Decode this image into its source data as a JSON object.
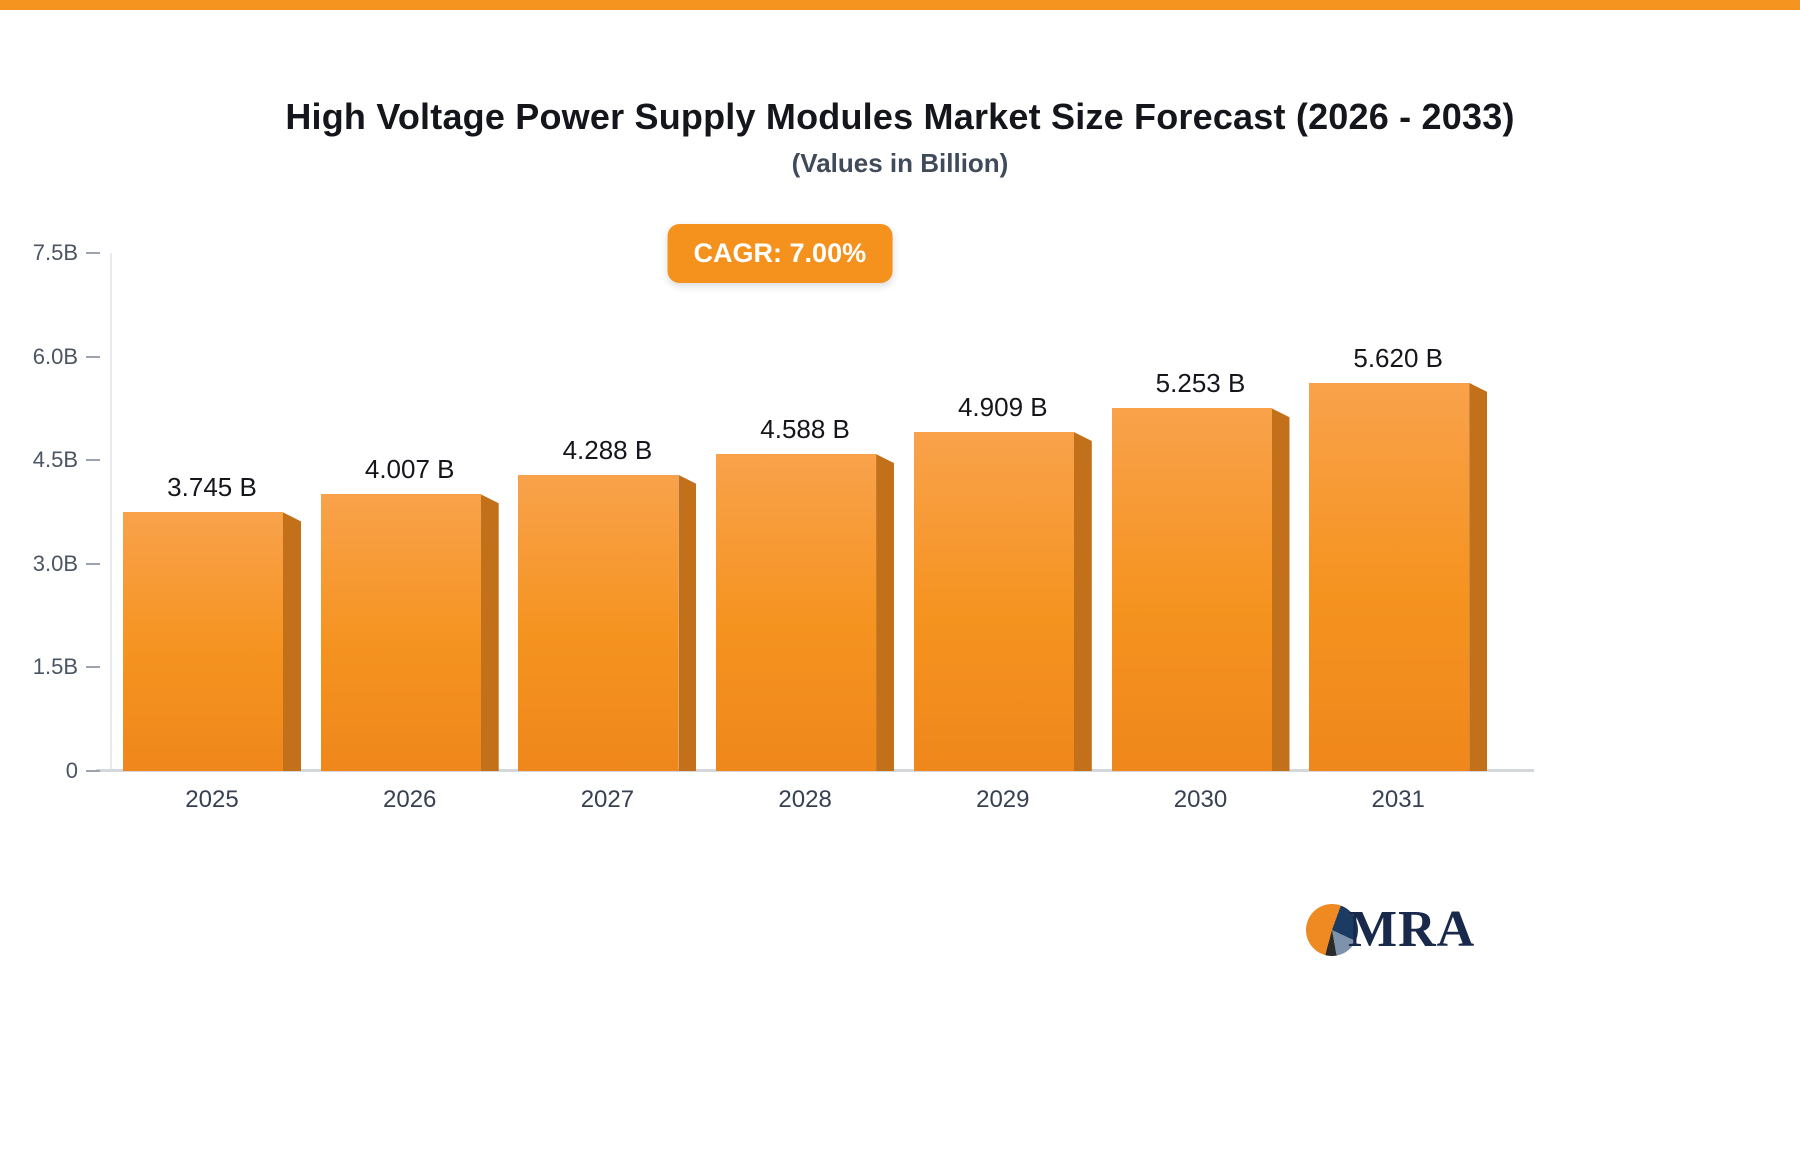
{
  "header": {
    "title": "High Voltage Power Supply Modules Market Size Forecast (2026 - 2033)",
    "subtitle": "(Values in Billion)"
  },
  "badge": {
    "label": "CAGR: 7.00%"
  },
  "chart_data": {
    "type": "bar",
    "categories": [
      "2025",
      "2026",
      "2027",
      "2028",
      "2029",
      "2030",
      "2031"
    ],
    "values": [
      3.745,
      4.007,
      4.288,
      4.588,
      4.909,
      5.253,
      5.62
    ],
    "value_labels": [
      "3.745 B",
      "4.007 B",
      "4.288 B",
      "4.588 B",
      "4.909 B",
      "5.253 B",
      "5.620 B"
    ],
    "title": "High Voltage Power Supply Modules Market Size Forecast (2026 - 2033)",
    "subtitle": "(Values in Billion)",
    "xlabel": "",
    "ylabel": "",
    "ylim": [
      0,
      7.5
    ],
    "ytick_labels": [
      "7.5B",
      "6.0B",
      "4.5B",
      "3.0B",
      "1.5B",
      "0"
    ],
    "ytick_values": [
      7.5,
      6.0,
      4.5,
      3.0,
      1.5,
      0
    ],
    "grid": false,
    "legend": "none",
    "colors": {
      "bar_face_top": "#f9a24b",
      "bar_face_bottom": "#ef871c",
      "bar_side": "#c2701a",
      "accent": "#f5921e"
    }
  },
  "logo": {
    "text": "MRA"
  }
}
